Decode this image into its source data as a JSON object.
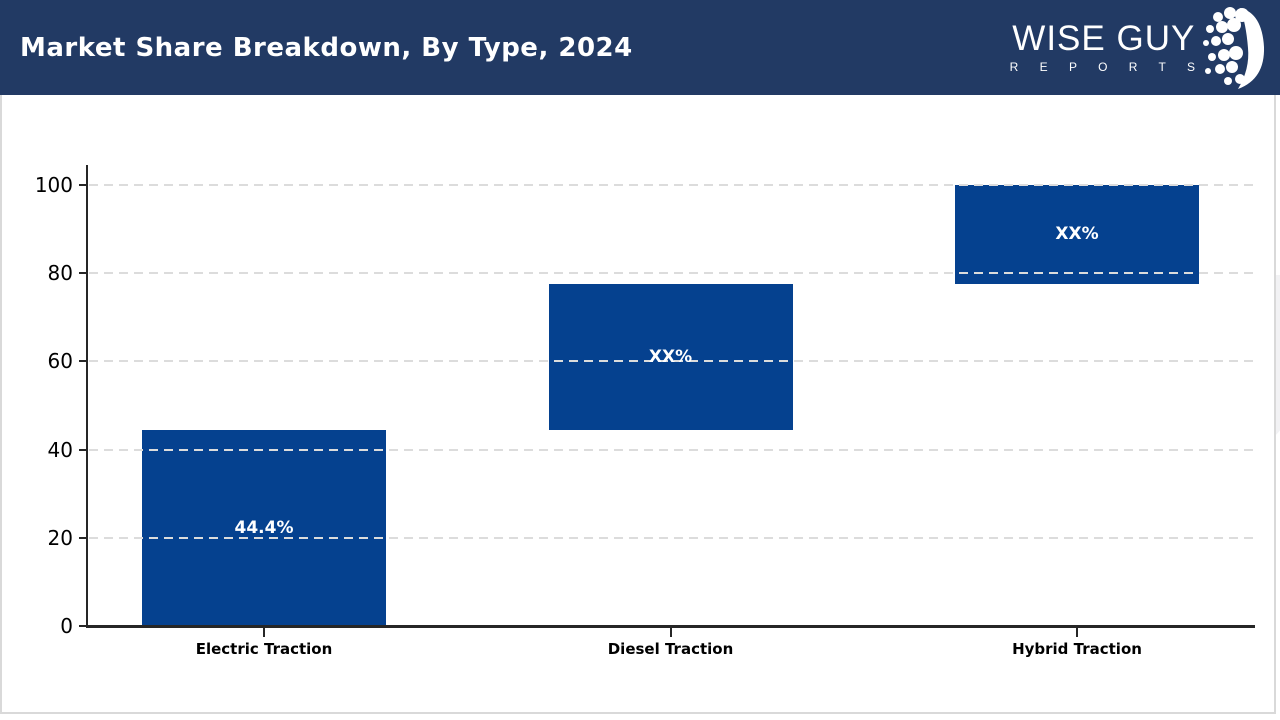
{
  "header": {
    "title": "Market Share Breakdown, By Type, 2024",
    "logo": {
      "line1": "WISE GUY",
      "line2": "R E P O R T S",
      "face_icon": "dotted-head-profile"
    }
  },
  "watermark": {
    "line1": "WISE GUY",
    "line2": "REPORTS"
  },
  "chart_data": {
    "type": "bar",
    "subtype": "waterfall-floating-bars",
    "title": "Market Share Breakdown, By Type, 2024",
    "categories": [
      "Electric Traction",
      "Diesel Traction",
      "Hybrid Traction"
    ],
    "series": [
      {
        "name": "Market Share",
        "segments": [
          {
            "category": "Electric Traction",
            "start": 0,
            "end": 44.4,
            "label": "44.4%"
          },
          {
            "category": "Diesel Traction",
            "start": 44.4,
            "end": 77.6,
            "label": "XX%"
          },
          {
            "category": "Hybrid Traction",
            "start": 77.6,
            "end": 100,
            "label": "XX%"
          }
        ]
      }
    ],
    "xlabel": "",
    "ylabel": "",
    "ylim": [
      0,
      100
    ],
    "yticks": [
      0,
      20,
      40,
      60,
      80,
      100
    ],
    "grid": "horizontal-dashed",
    "legend_position": "none",
    "bar_color": "#05418F",
    "bar_label_color": "#FFFFFF",
    "axis_color": "#262626",
    "grid_color": "#DCDCDC"
  },
  "colors": {
    "header_bg": "#223A64",
    "content_border": "#D9D9D9",
    "background": "#FFFFFF",
    "watermark": "#F2F2F4"
  }
}
